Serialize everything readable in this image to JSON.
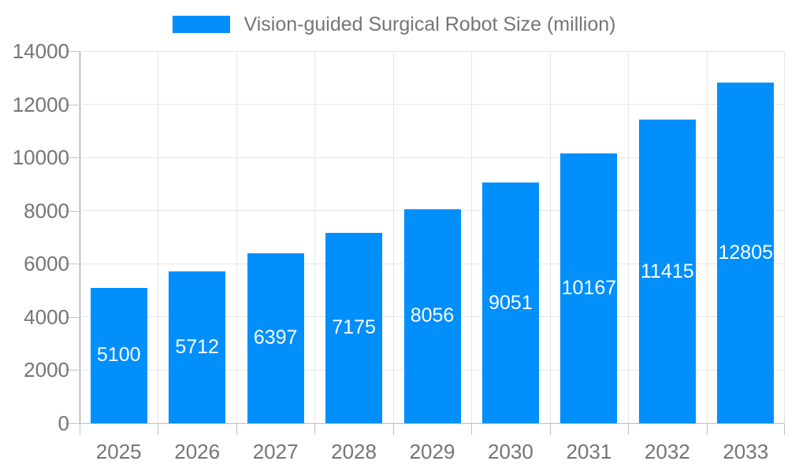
{
  "chart_data": {
    "type": "bar",
    "title": "Vision-guided Surgical Robot Size (million)",
    "categories": [
      "2025",
      "2026",
      "2027",
      "2028",
      "2029",
      "2030",
      "2031",
      "2032",
      "2033"
    ],
    "values": [
      5100,
      5712,
      6397,
      7175,
      8056,
      9051,
      10167,
      11415,
      12805
    ],
    "xlabel": "",
    "ylabel": "",
    "ylim": [
      0,
      14000
    ],
    "y_ticks": [
      0,
      2000,
      4000,
      6000,
      8000,
      10000,
      12000,
      14000
    ],
    "grid": true,
    "legend_position": "top",
    "value_labels": "inside-center",
    "colors": {
      "bar": "#008ffb",
      "value_label": "#ffffff",
      "axis_text": "#757575",
      "gridline": "#e6e6e6",
      "axis_line": "#909090",
      "tick": "#c2c2c2",
      "background": "#ffffff"
    }
  }
}
